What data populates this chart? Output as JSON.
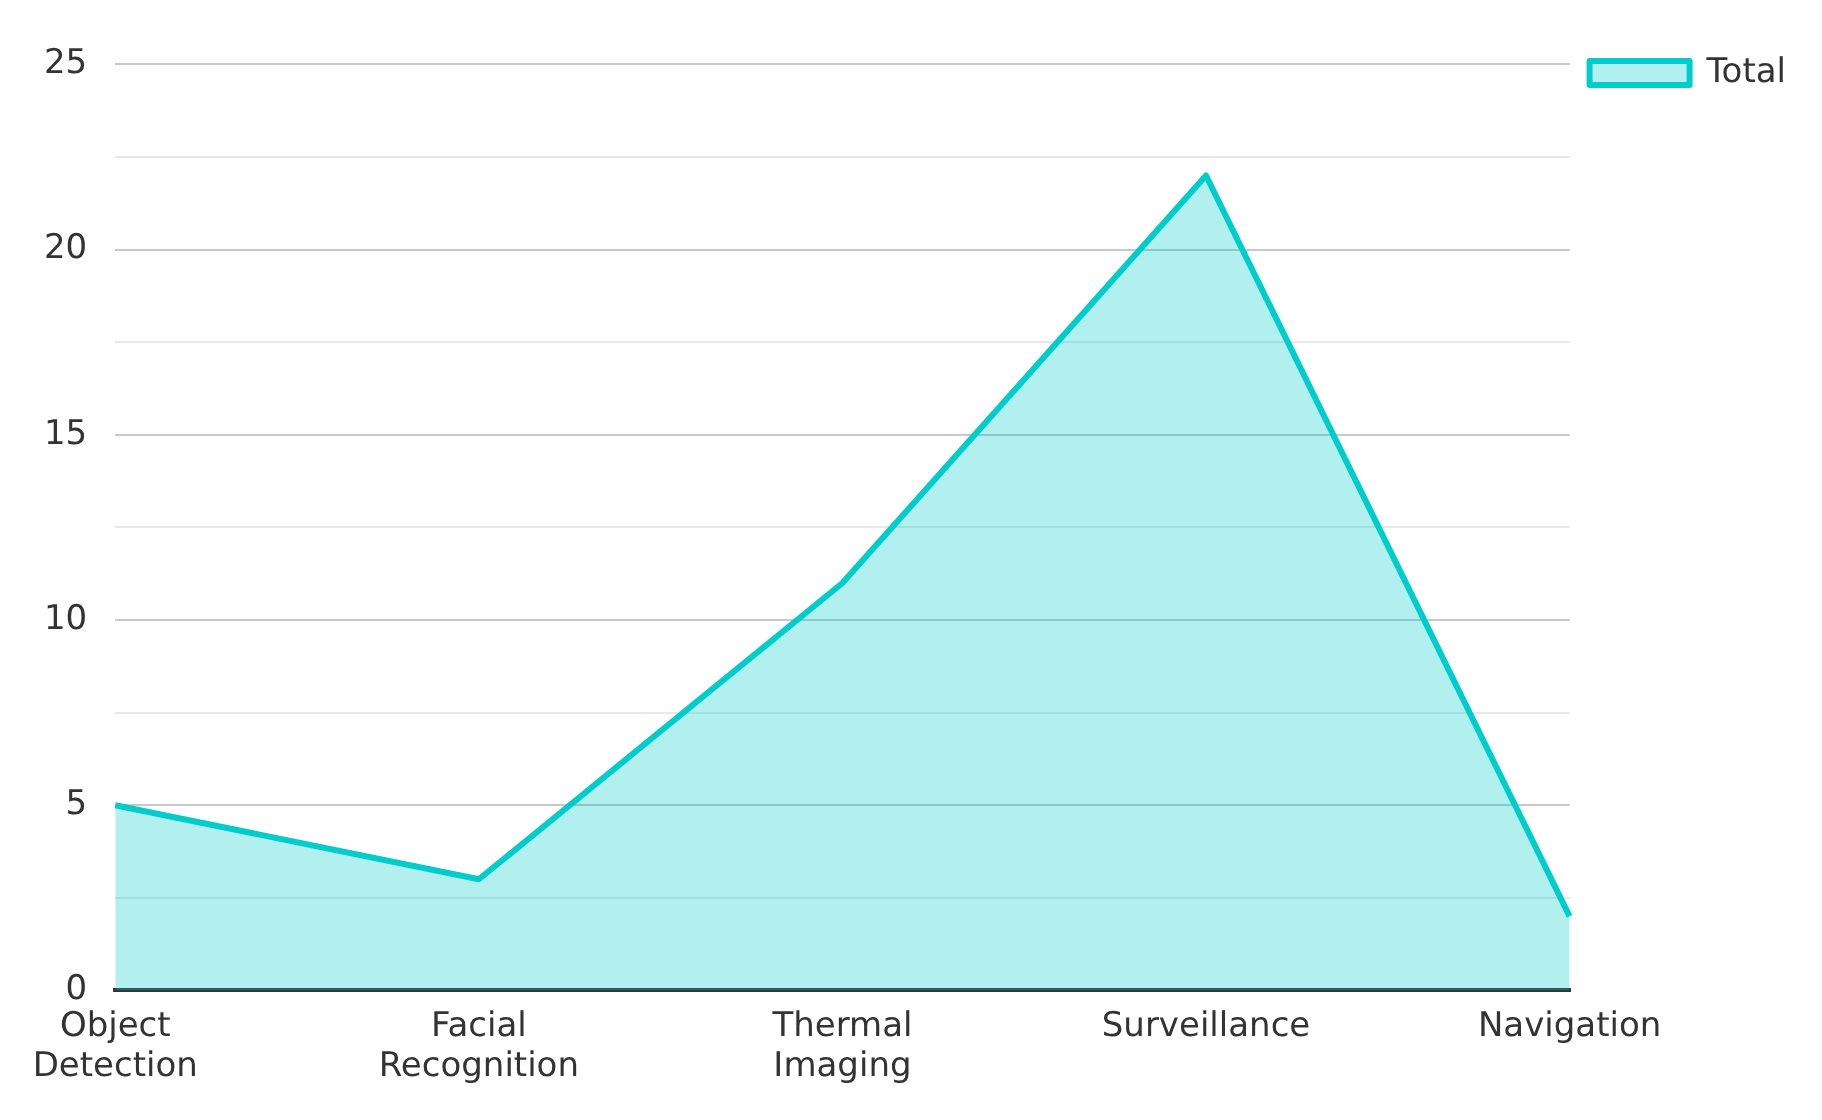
{
  "chart_data": {
    "type": "area",
    "categories": [
      "Object Detection",
      "Facial Recognition",
      "Thermal Imaging",
      "Surveillance",
      "Navigation"
    ],
    "series": [
      {
        "name": "Total",
        "color": "#00cccc",
        "values": [
          5,
          3,
          11,
          22,
          2
        ]
      }
    ],
    "ylim": [
      0,
      25
    ],
    "yticks": [
      0,
      {
        "value": 2.5,
        "label": null
      },
      5,
      {
        "value": 7.5,
        "label": null
      },
      10,
      {
        "value": 12.5,
        "label": null
      },
      15,
      {
        "value": 17.5,
        "label": null
      },
      20,
      {
        "value": 22.5,
        "label": null
      },
      25
    ],
    "grid": "y",
    "legend": "top right"
  }
}
